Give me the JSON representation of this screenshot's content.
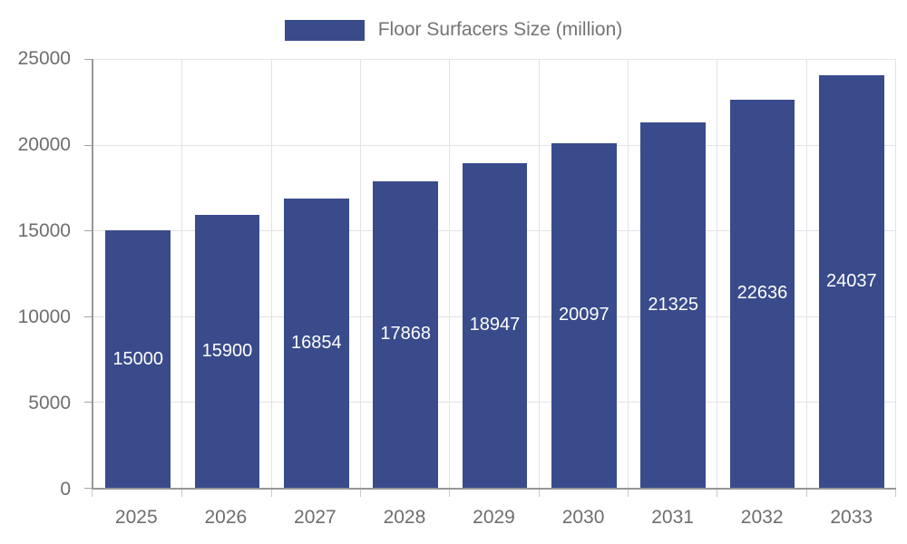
{
  "legend": {
    "label": "Floor Surfacers Size (million)"
  },
  "colors": {
    "bar": "#3a4b8c",
    "grid": "#e2e2e9",
    "axis_line": "#979797",
    "y_tick": "#a2a2a2",
    "x_tick": "#c9c9c9",
    "axis_text": "#6e6e6e",
    "legend_text": "#757575",
    "bar_label_text": "#ffffff",
    "background": "#ffffff"
  },
  "chart_data": {
    "type": "bar",
    "title": "",
    "series_name": "Floor Surfacers Size (million)",
    "categories": [
      "2025",
      "2026",
      "2027",
      "2028",
      "2029",
      "2030",
      "2031",
      "2032",
      "2033"
    ],
    "values": [
      15000,
      15900,
      16854,
      17868,
      18947,
      20097,
      21325,
      22636,
      24037
    ],
    "value_labels": [
      "15000",
      "15900",
      "16854",
      "17868",
      "18947",
      "20097",
      "21325",
      "22636",
      "24037"
    ],
    "value_labels_visible": true,
    "value_label_position": "inside-center",
    "xlabel": "",
    "ylabel": "",
    "ylim": [
      0,
      25000
    ],
    "yticks": [
      0,
      5000,
      10000,
      15000,
      20000,
      25000
    ],
    "grid": "horizontal-and-vertical",
    "legend_position": "top-center",
    "bar_width_fraction": 0.73
  }
}
